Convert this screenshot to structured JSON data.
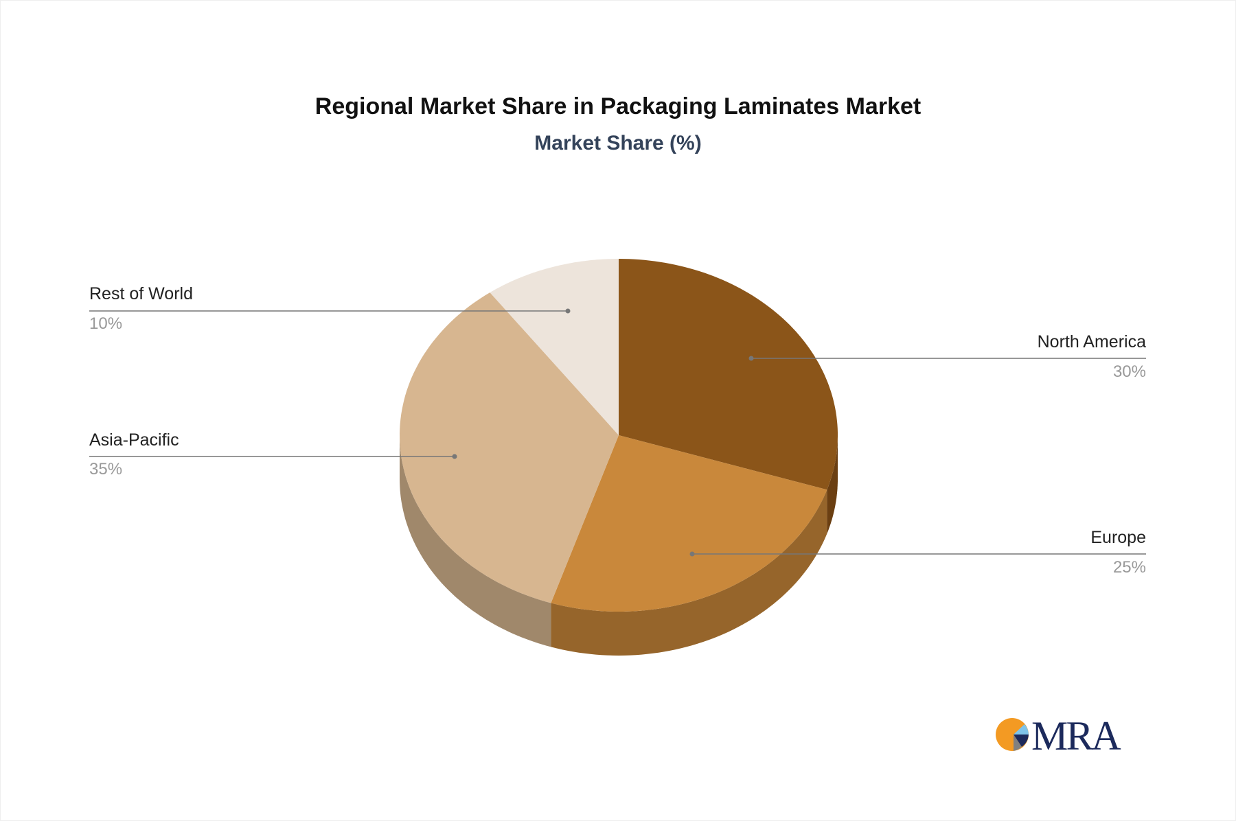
{
  "chart_data": {
    "type": "pie",
    "title": "Regional Market Share in Packaging Laminates Market",
    "subtitle": "Market Share (%)",
    "style": "3d",
    "slices": [
      {
        "label": "North America",
        "value": 30,
        "display": "30%",
        "color": "#8B5519",
        "side_color": "#6B3F12"
      },
      {
        "label": "Europe",
        "value": 25,
        "display": "25%",
        "color": "#C9883B",
        "side_color": "#96652B"
      },
      {
        "label": "Asia-Pacific",
        "value": 35,
        "display": "35%",
        "color": "#D7B690",
        "side_color": "#A0886B"
      },
      {
        "label": "Rest of World",
        "value": 10,
        "display": "10%",
        "color": "#EDE4DB",
        "side_color": "#BFB3A6"
      }
    ]
  },
  "logo": {
    "text": "MRA",
    "colors": [
      "#F39A23",
      "#1C2A5C",
      "#7FC4EA",
      "#808080"
    ]
  }
}
